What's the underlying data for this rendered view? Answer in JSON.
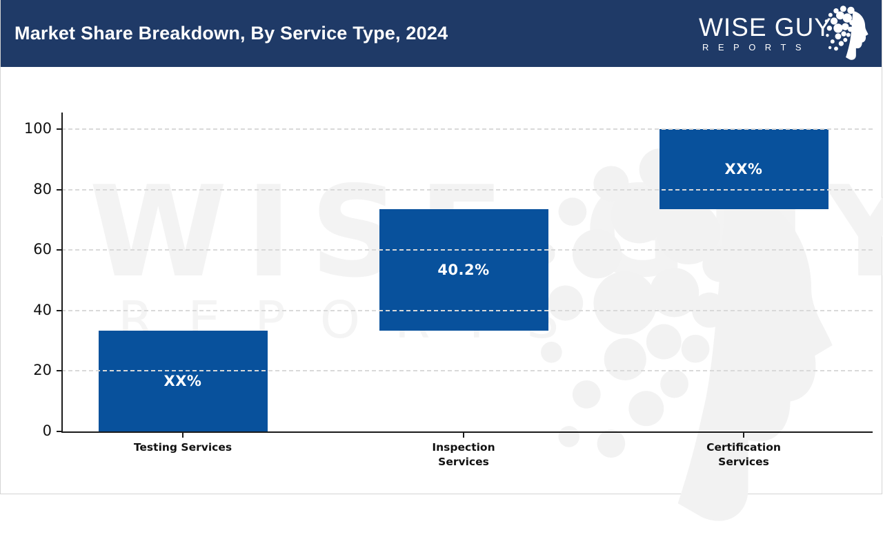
{
  "header": {
    "title": "Market Share Breakdown, By Service Type, 2024",
    "logo": {
      "brand": "WISE GUY",
      "sub": "REPORTS"
    }
  },
  "watermark": {
    "line1": "WISE GUY",
    "line2": "REPORTS"
  },
  "colors": {
    "header_bg": "#1f3a67",
    "bar": "#08519c",
    "grid": "#d9d9d9",
    "axis": "#1a1a1a",
    "bar_label": "#ffffff",
    "watermark": "#f3f3f3"
  },
  "chart_data": {
    "type": "bar",
    "subtype": "floating-waterfall",
    "title": "Market Share Breakdown, By Service Type, 2024",
    "xlabel": "",
    "ylabel": "",
    "ylim": [
      0,
      105
    ],
    "yticks": [
      0,
      20,
      40,
      60,
      80,
      100
    ],
    "grid": "horizontal-dashed",
    "legend": "none",
    "categories": [
      "Testing Services",
      "Inspection\nServices",
      "Certification\nServices"
    ],
    "bars": [
      {
        "category": "Testing Services",
        "base": 0,
        "top": 33.4,
        "label": "XX%"
      },
      {
        "category": "Inspection Services",
        "base": 33.4,
        "top": 73.6,
        "label": "40.2%"
      },
      {
        "category": "Certification Services",
        "base": 73.6,
        "top": 100,
        "label": "XX%"
      }
    ],
    "bar_color": "#08519c",
    "value_label_color": "#ffffff"
  }
}
